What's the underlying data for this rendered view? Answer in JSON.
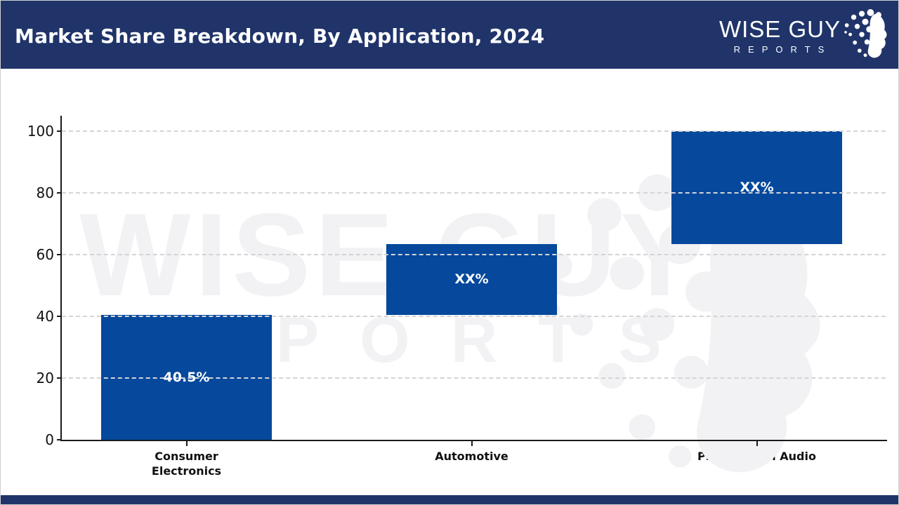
{
  "header": {
    "title": "Market Share Breakdown, By Application, 2024",
    "logo_line1": "WISE GUY",
    "logo_line2": "REPORTS"
  },
  "watermark": {
    "line1": "WISE GUY",
    "line2": "REPORTS"
  },
  "footer": {},
  "colors": {
    "header_bg": "#20346a",
    "footer_bg": "#20346a",
    "bar": "#05489c",
    "grid": "#d4d4d6",
    "axis": "#1a1a1a",
    "watermark": "#f2f2f4",
    "bar_value_text": "#ffffff"
  },
  "chart_data": {
    "type": "bar",
    "variant": "waterfall",
    "title": "Market Share Breakdown, By Application, 2024",
    "categories": [
      "Consumer\nElectronics",
      "Automotive",
      "Professional Audio"
    ],
    "segments": [
      {
        "category": "Consumer Electronics",
        "start": 0,
        "end": 40.5,
        "value_label": "40.5%"
      },
      {
        "category": "Automotive",
        "start": 40.5,
        "end": 63.5,
        "value_label": "XX%"
      },
      {
        "category": "Professional Audio",
        "start": 63.5,
        "end": 100,
        "value_label": "XX%"
      }
    ],
    "ylabel": "",
    "xlabel": "",
    "yticks": [
      0,
      20,
      40,
      60,
      80,
      100
    ],
    "ylim": [
      0,
      105
    ],
    "grid": "horizontal-dashed",
    "gridline_values": [
      20,
      40,
      60,
      80,
      100
    ],
    "legend": false,
    "bar_color": "#05489c"
  }
}
